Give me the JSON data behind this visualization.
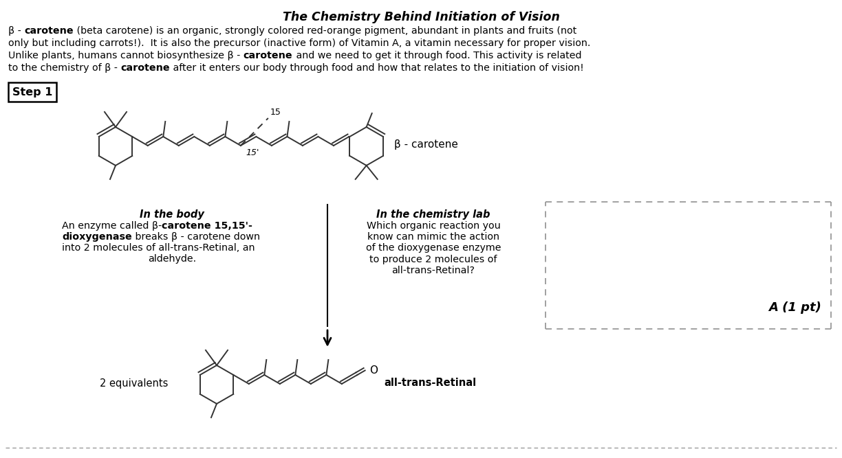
{
  "title": "The Chemistry Behind Initiation of Vision",
  "bg_color": "#ffffff",
  "text_color": "#000000",
  "step1_label": "Step 1",
  "beta_carotene_label": "β - carotene",
  "label_15": "15",
  "label_15p": "15'",
  "in_body_title": "In the body",
  "in_body_text_1": "An enzyme called β-carotene 15,15'-",
  "in_body_text_bold": "dioxygenase",
  "in_body_text_2": " breaks β - carotene down\ninto 2 molecules of all-trans-Retinal, an\naldehyde.",
  "in_lab_title": "In the chemistry lab",
  "in_lab_text": "Which organic reaction you\nknow can mimic the action\nof the dioxygenase enzyme\nto produce 2 molecules of\nall-trans-Retinal?",
  "answer_label": "A (1 pt)",
  "two_equiv_label": "2 equivalents",
  "all_trans_label": "all-trans-Retinal",
  "bottom_dash_color": "#999999",
  "dashed_box_color": "#999999",
  "line_color": "#333333"
}
